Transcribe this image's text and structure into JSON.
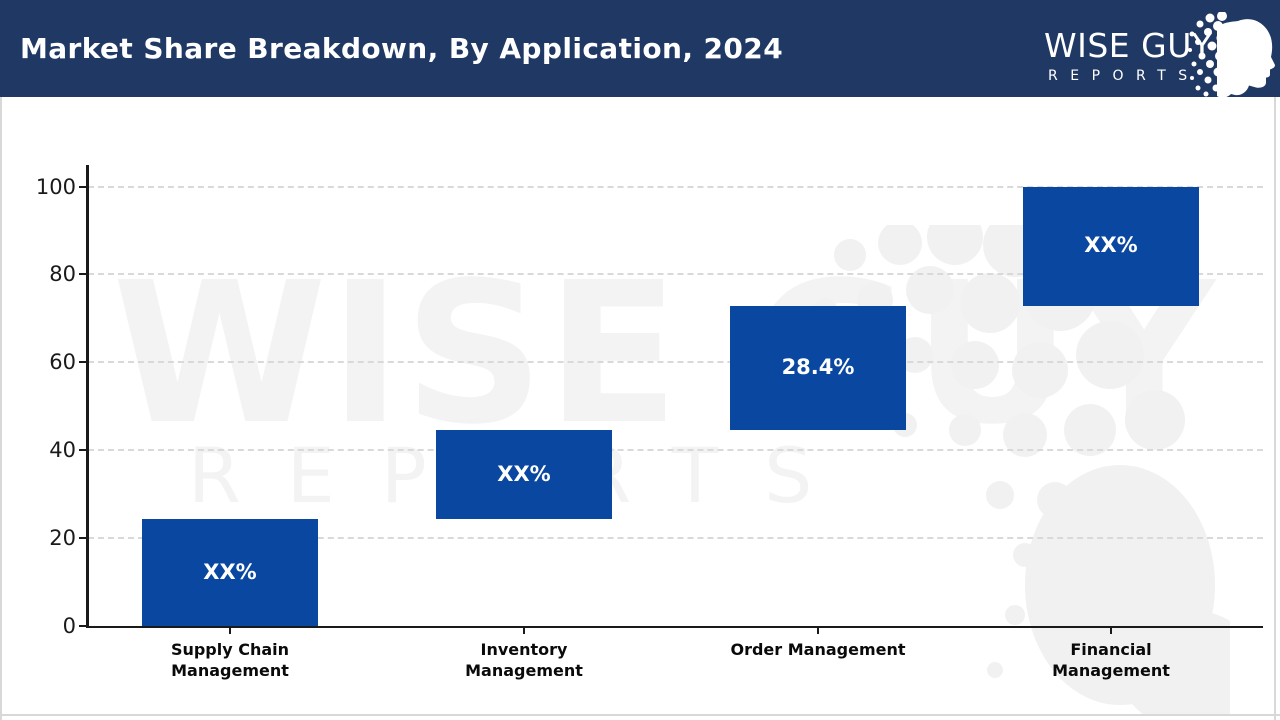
{
  "header": {
    "title": "Market Share Breakdown, By Application, 2024",
    "logo": {
      "name_top": "WISE GUY",
      "name_bottom": "REPORTS"
    }
  },
  "watermark": {
    "text_large": "WISE GUY",
    "text_small": "REPORTS"
  },
  "chart_data": {
    "type": "bar",
    "subtype": "floating-waterfall",
    "title": "Market Share Breakdown, By Application, 2024",
    "categories": [
      "Supply Chain Management",
      "Inventory Management",
      "Order Management",
      "Financial Management"
    ],
    "category_lines": [
      [
        "Supply Chain",
        "Management"
      ],
      [
        "Inventory",
        "Management"
      ],
      [
        "Order Management"
      ],
      [
        "Financial",
        "Management"
      ]
    ],
    "segments": [
      {
        "category": "Supply Chain Management",
        "start": 0,
        "end": 24.3,
        "label": "XX%"
      },
      {
        "category": "Inventory Management",
        "start": 24.3,
        "end": 44.5,
        "label": "XX%"
      },
      {
        "category": "Order Management",
        "start": 44.5,
        "end": 72.9,
        "label": "28.4%"
      },
      {
        "category": "Financial Management",
        "start": 72.9,
        "end": 100,
        "label": "XX%"
      }
    ],
    "yticks": [
      0,
      20,
      40,
      60,
      80,
      100
    ],
    "ylim": [
      0,
      105
    ],
    "xlabel": "",
    "ylabel": "",
    "grid": "horizontal-dashed",
    "legend": "none"
  },
  "colors": {
    "header_bg": "#1f3864",
    "bar": "#0a47a0",
    "grid": "#d9d9d9",
    "axis": "#1a1a1a",
    "watermark": "#f3f3f3",
    "border": "#d8d8d8"
  }
}
